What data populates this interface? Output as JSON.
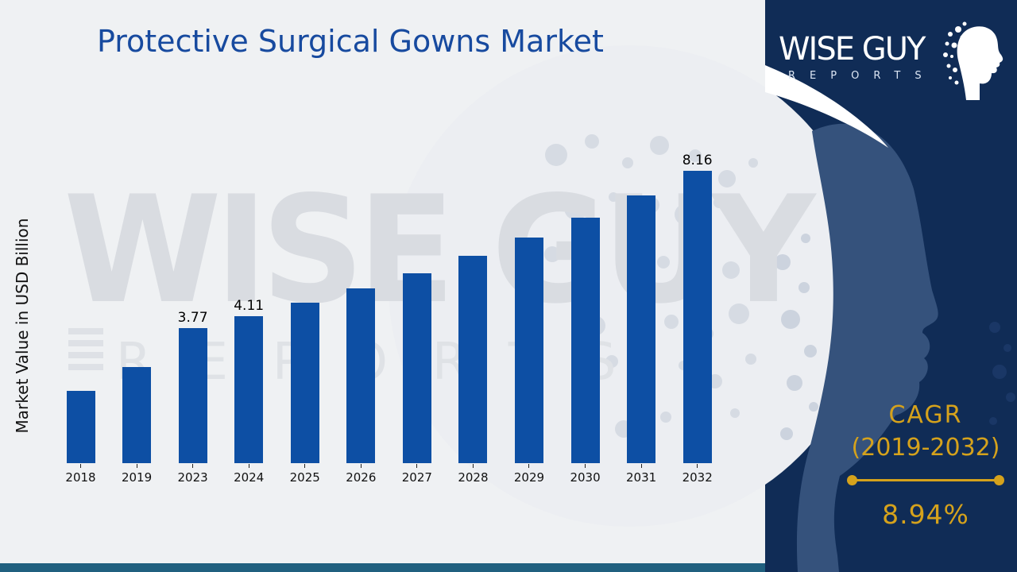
{
  "title": "Protective Surgical Gowns Market",
  "y_axis_label": "Market Value in USD Billion",
  "watermark": {
    "line1": "WISE GUY",
    "line2": "REPORTS"
  },
  "logo": {
    "line1": "WISE GUY",
    "line2": "REPORTS"
  },
  "cagr": {
    "heading": "CAGR",
    "range": "(2019-2032)",
    "value": "8.94%"
  },
  "colors": {
    "bar": "#0d4fa4",
    "navy": "#102c56",
    "gold": "#d5a21c",
    "teal": "#20607f",
    "title_blue": "#174a9f",
    "face_blue": "#35527c",
    "circle_pale": "#eceef2",
    "wm_gray": "#d9dce1",
    "wm_gray2": "#dfe2e6"
  },
  "chart_data": {
    "type": "bar",
    "title": "Protective Surgical Gowns Market",
    "xlabel": "",
    "ylabel": "Market Value in USD Billion",
    "categories": [
      "2018",
      "2019",
      "2023",
      "2024",
      "2025",
      "2026",
      "2027",
      "2028",
      "2029",
      "2030",
      "2031",
      "2032"
    ],
    "values": [
      2.02,
      2.68,
      3.77,
      4.11,
      4.48,
      4.88,
      5.31,
      5.79,
      6.31,
      6.87,
      7.49,
      8.16
    ],
    "point_labels": {
      "2023": "3.77",
      "2024": "4.11",
      "2032": "8.16"
    },
    "ylim": [
      0,
      8.8
    ],
    "grid": false,
    "legend": false,
    "bar_color": "#0d4fa4"
  }
}
